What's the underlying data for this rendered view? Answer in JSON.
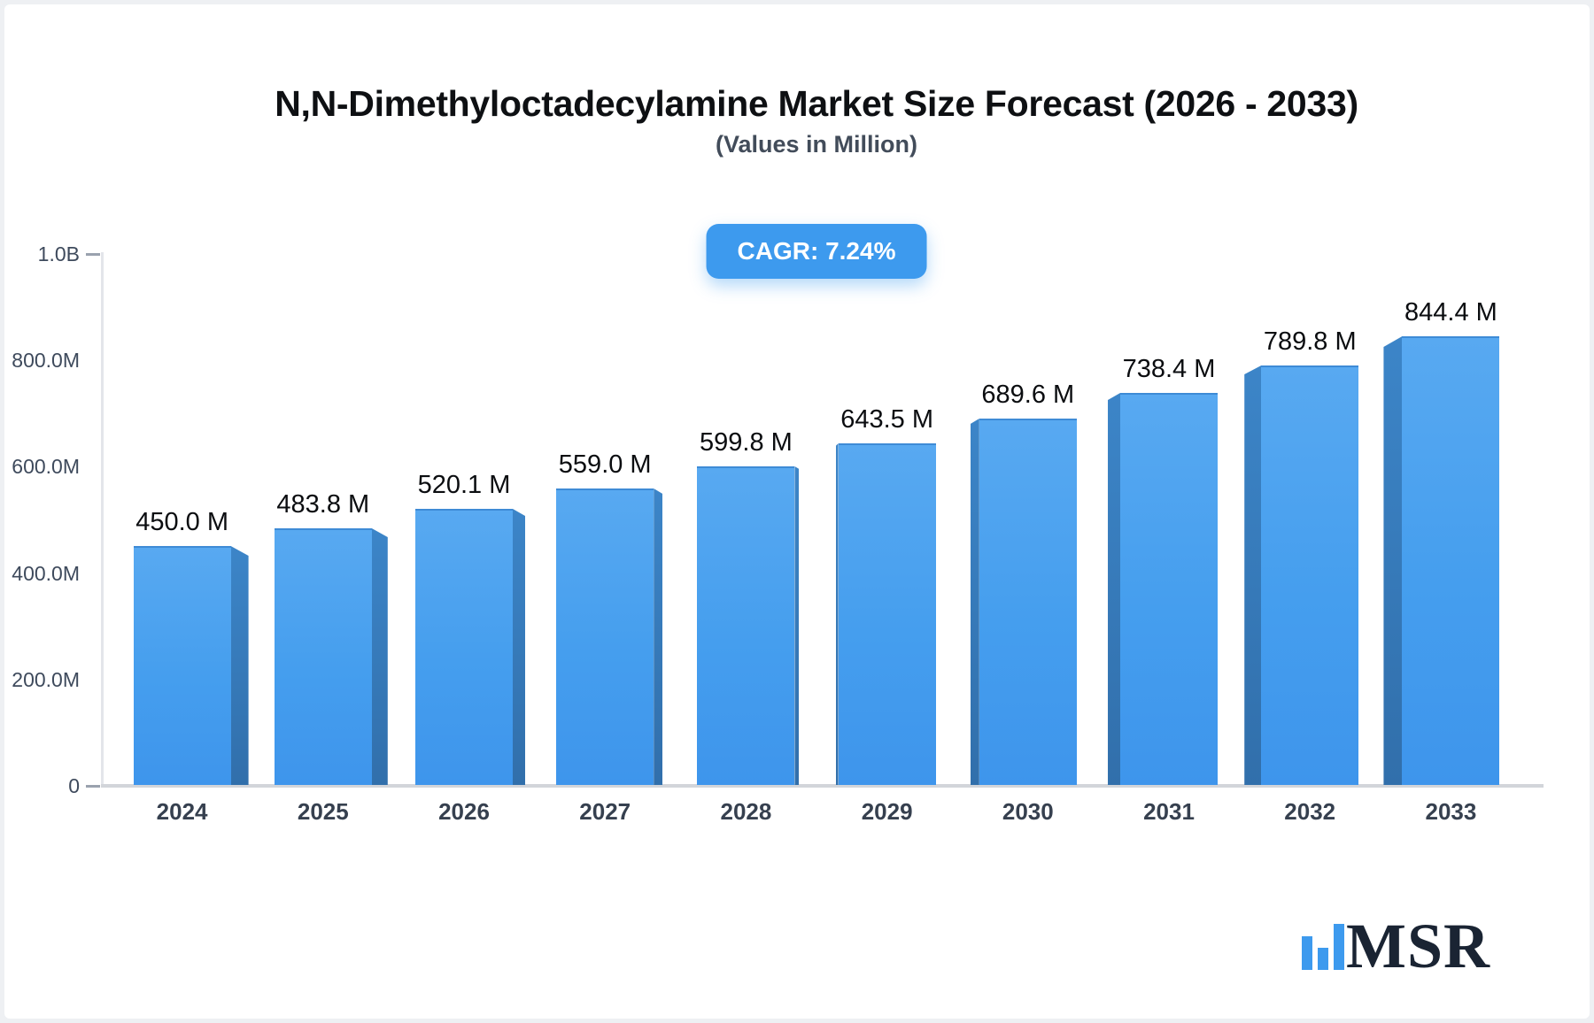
{
  "header": {
    "title": "N,N-Dimethyloctadecylamine Market Size Forecast (2026 - 2033)",
    "subtitle": "(Values in Million)",
    "cagr_badge": "CAGR: 7.24%"
  },
  "chart_data": {
    "type": "bar",
    "title": "N,N-Dimethyloctadecylamine Market Size Forecast (2026 - 2033)",
    "subtitle": "(Values in Million)",
    "categories": [
      "2024",
      "2025",
      "2026",
      "2027",
      "2028",
      "2029",
      "2030",
      "2031",
      "2032",
      "2033"
    ],
    "values": [
      450.0,
      483.8,
      520.1,
      559.0,
      599.8,
      643.5,
      689.6,
      738.4,
      789.8,
      844.4
    ],
    "value_labels": [
      "450.0 M",
      "483.8 M",
      "520.1 M",
      "559.0 M",
      "599.8 M",
      "643.5 M",
      "689.6 M",
      "738.4 M",
      "789.8 M",
      "844.4 M"
    ],
    "xlabel": "",
    "ylabel": "",
    "ylim": [
      0,
      1000
    ],
    "y_tick_labels": [
      "1.0B",
      "800.0M",
      "600.0M",
      "400.0M",
      "200.0M",
      "0"
    ],
    "grid": false,
    "legend": null,
    "annotations": [
      "CAGR: 7.24%"
    ]
  },
  "colors": {
    "accent_blue": "#3d9aee",
    "bar_face_top": "#58a9f1",
    "bar_face_bottom": "#3e95ec",
    "bar_side": "#3376b5",
    "axis_line": "#d2d5da",
    "text_dark": "#0e1013",
    "logo_navy": "#1a2433"
  },
  "branding": {
    "logo_text": "MSR"
  }
}
